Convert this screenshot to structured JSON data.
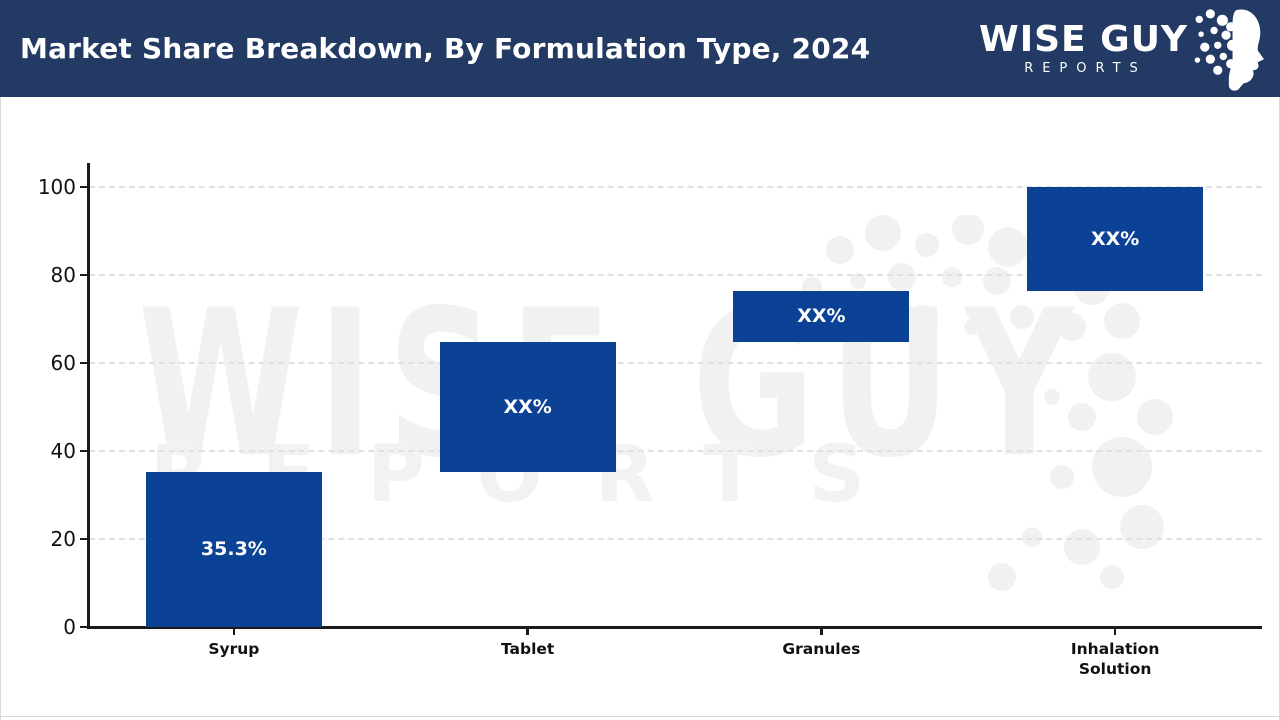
{
  "header": {
    "title": "Market Share Breakdown, By Formulation Type, 2024",
    "bg_color": "#223A64",
    "logo": {
      "name": "WISE GUY",
      "subtitle": "REPORTS"
    }
  },
  "watermark": {
    "line1": "WISE GUY",
    "line2": "REPORTS"
  },
  "chart_data": {
    "type": "bar",
    "variant": "waterfall",
    "title": "Market Share Breakdown, By Formulation Type, 2024",
    "categories": [
      "Syrup",
      "Tablet",
      "Granules",
      "Inhalation Solution"
    ],
    "segments": [
      {
        "category": "Syrup",
        "start": 0,
        "end": 35.3,
        "label": "35.3%"
      },
      {
        "category": "Tablet",
        "start": 35.3,
        "end": 64.8,
        "label": "XX%"
      },
      {
        "category": "Granules",
        "start": 64.8,
        "end": 76.4,
        "label": "XX%"
      },
      {
        "category": "Inhalation Solution",
        "start": 76.4,
        "end": 100,
        "label": "XX%"
      }
    ],
    "yticks": [
      0,
      20,
      40,
      60,
      80,
      100
    ],
    "ylim": [
      0,
      105.5
    ],
    "xlabel": "",
    "ylabel": "",
    "legend": null,
    "grid": "horizontal-dashed",
    "bar_color": "#0C4295",
    "bar_label_color": "#FFFFFF",
    "axis_color": "#1a1a1a",
    "gridline_color": "#e1e1e1"
  }
}
